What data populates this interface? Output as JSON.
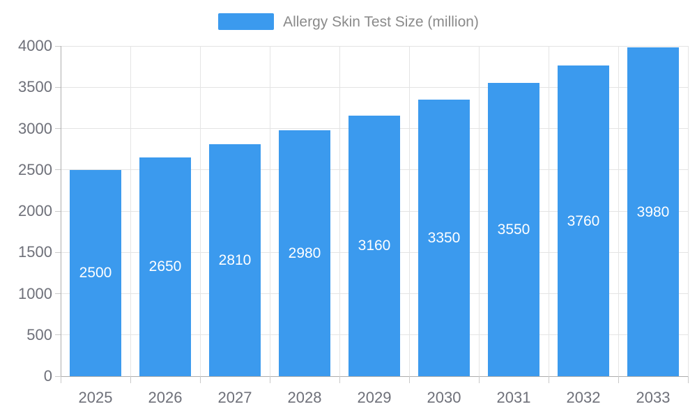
{
  "chart_data": {
    "type": "bar",
    "title": "",
    "legend": {
      "label": "Allergy Skin Test Size (million)",
      "position": "top-center"
    },
    "categories": [
      "2025",
      "2026",
      "2027",
      "2028",
      "2029",
      "2030",
      "2031",
      "2032",
      "2033"
    ],
    "values": [
      2500,
      2650,
      2810,
      2980,
      3160,
      3350,
      3550,
      3760,
      3980
    ],
    "series": [
      {
        "name": "Allergy Skin Test Size (million)",
        "values": [
          2500,
          2650,
          2810,
          2980,
          3160,
          3350,
          3550,
          3760,
          3980
        ]
      }
    ],
    "xlabel": "",
    "ylabel": "",
    "ylim": [
      0,
      4000
    ],
    "yticks": [
      0,
      500,
      1000,
      1500,
      2000,
      2500,
      3000,
      3500,
      4000
    ],
    "grid": {
      "horizontal": true,
      "vertical": true
    },
    "value_labels": {
      "show": true,
      "position": "inside-middle"
    },
    "colors": {
      "bar": "#3B9AEE",
      "grid_line": "#E4E4E4",
      "axis_line": "#ADADAD",
      "tick_line": "#C9C9C9",
      "axis_label": "#6E7079",
      "legend_text": "#8A8A8A",
      "value_label": "#FFFFFF",
      "background": "#FFFFFF"
    }
  }
}
